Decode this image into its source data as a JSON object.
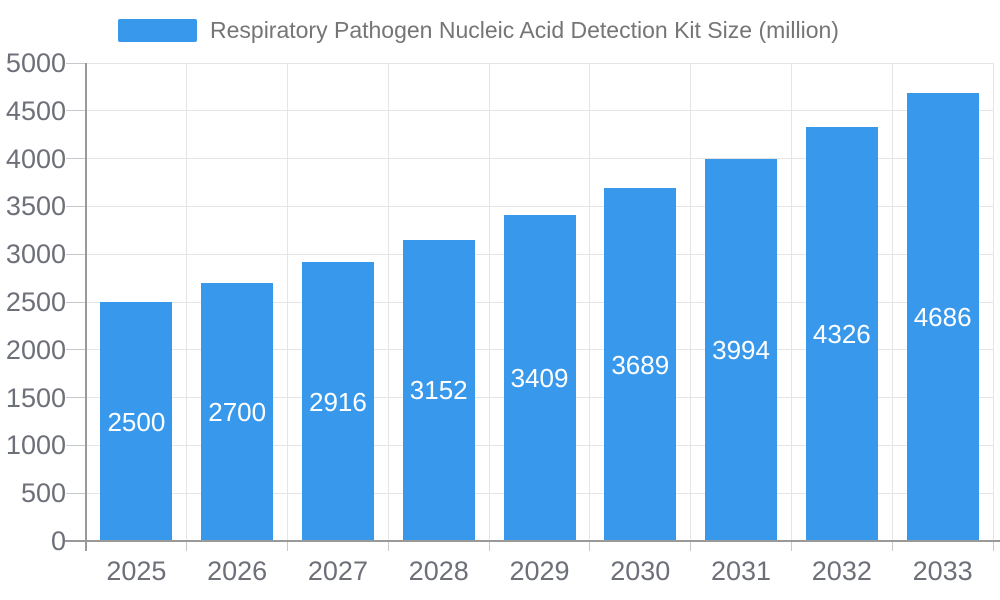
{
  "legend": {
    "label": "Respiratory Pathogen Nucleic Acid Detection Kit Size (million)"
  },
  "chart_data": {
    "type": "bar",
    "title": "Respiratory Pathogen Nucleic Acid Detection Kit Size (million)",
    "categories": [
      "2025",
      "2026",
      "2027",
      "2028",
      "2029",
      "2030",
      "2031",
      "2032",
      "2033"
    ],
    "values": [
      2500,
      2700,
      2916,
      3152,
      3409,
      3689,
      3994,
      4326,
      4686
    ],
    "xlabel": "",
    "ylabel": "",
    "ylim": [
      0,
      5000
    ],
    "yticks": [
      0,
      500,
      1000,
      1500,
      2000,
      2500,
      3000,
      3500,
      4000,
      4500,
      5000
    ],
    "grid": true,
    "legend_position": "top",
    "value_labels": "centered-inside-bars",
    "colors": {
      "bar": "#3899ec",
      "value_label": "#ffffff",
      "axis_label": "#6e7079",
      "title": "#757575",
      "grid_line": "#e5e5e5",
      "tick_line": "#c6c9cc",
      "axis_line": "#999999"
    }
  }
}
